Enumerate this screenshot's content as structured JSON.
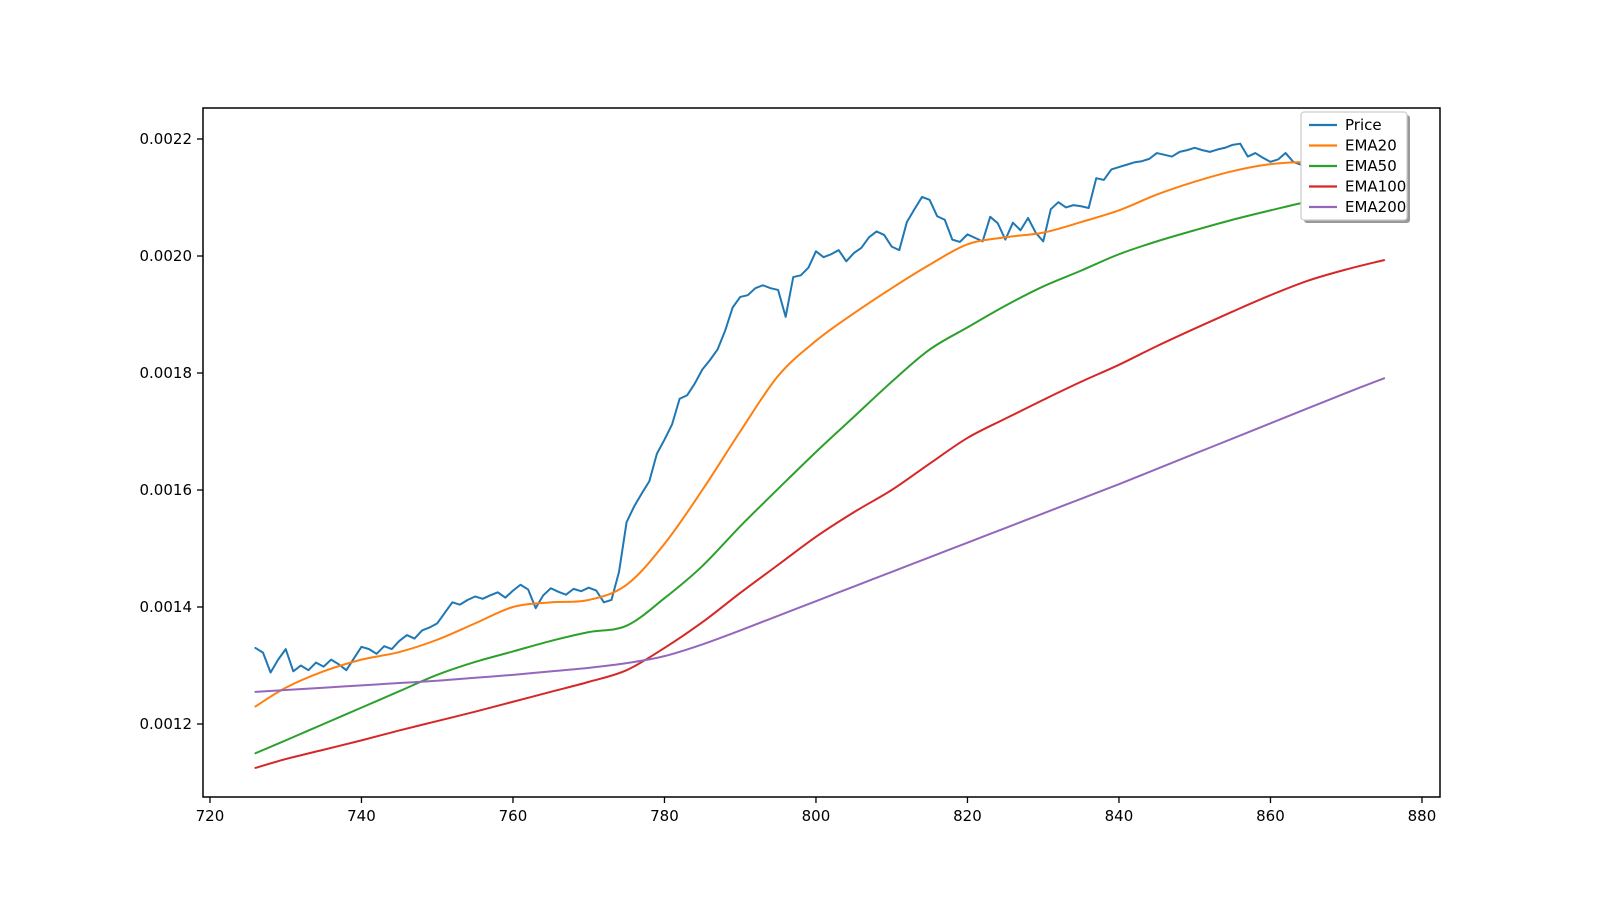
{
  "chart_data": {
    "type": "line",
    "title": "",
    "xlabel": "",
    "ylabel": "",
    "grid": false,
    "background_color": "#ffffff",
    "axes_edge_color": "#000000",
    "legend_position": "upper right",
    "xlim": [
      719.08,
      882.38
    ],
    "ylim": [
      0.0010752,
      0.002253
    ],
    "x_ticks": [
      720,
      740,
      760,
      780,
      800,
      820,
      840,
      860,
      880
    ],
    "x_tick_labels": [
      "720",
      "740",
      "760",
      "780",
      "800",
      "820",
      "840",
      "860",
      "880"
    ],
    "y_ticks": [
      0.0012,
      0.0014,
      0.0016,
      0.0018,
      0.002,
      0.0022
    ],
    "y_tick_labels": [
      "0.0012",
      "0.0014",
      "0.0016",
      "0.0018",
      "0.0020",
      "0.0022"
    ],
    "series": [
      {
        "name": "Price",
        "color": "#1f77b4",
        "smooth": false,
        "x_start": 726,
        "x_step": 1,
        "values": [
          0.00133,
          0.001322,
          0.001288,
          0.00131,
          0.001328,
          0.00129,
          0.0013,
          0.001292,
          0.001305,
          0.001298,
          0.00131,
          0.001302,
          0.001292,
          0.001312,
          0.001332,
          0.001328,
          0.00132,
          0.001333,
          0.001328,
          0.001342,
          0.001352,
          0.001346,
          0.00136,
          0.001365,
          0.001372,
          0.00139,
          0.001408,
          0.001404,
          0.001412,
          0.001418,
          0.001414,
          0.00142,
          0.001425,
          0.001416,
          0.001428,
          0.001438,
          0.00143,
          0.001398,
          0.00142,
          0.001432,
          0.001426,
          0.001421,
          0.001431,
          0.001427,
          0.001433,
          0.001428,
          0.001408,
          0.001412,
          0.00146,
          0.001545,
          0.001572,
          0.001594,
          0.001615,
          0.001662,
          0.001686,
          0.001712,
          0.001756,
          0.001762,
          0.001782,
          0.001806,
          0.001822,
          0.00184,
          0.001872,
          0.001912,
          0.00193,
          0.001933,
          0.001945,
          0.00195,
          0.001945,
          0.001942,
          0.001896,
          0.001964,
          0.001967,
          0.00198,
          0.002008,
          0.001998,
          0.002003,
          0.00201,
          0.001991,
          0.002005,
          0.002014,
          0.002032,
          0.002042,
          0.002036,
          0.002016,
          0.00201,
          0.002058,
          0.00208,
          0.002101,
          0.002096,
          0.002068,
          0.002062,
          0.002028,
          0.002024,
          0.002037,
          0.002031,
          0.002025,
          0.002067,
          0.002056,
          0.002028,
          0.002057,
          0.002044,
          0.002065,
          0.00204,
          0.002025,
          0.00208,
          0.002092,
          0.002083,
          0.002087,
          0.002085,
          0.002082,
          0.002133,
          0.00213,
          0.002148,
          0.002152,
          0.002156,
          0.00216,
          0.002162,
          0.002166,
          0.002176,
          0.002173,
          0.00217,
          0.002178,
          0.002181,
          0.002185,
          0.002181,
          0.002178,
          0.002182,
          0.002185,
          0.00219,
          0.002192,
          0.00217,
          0.002176,
          0.002168,
          0.002161,
          0.002165,
          0.002176,
          0.002161,
          0.002156,
          0.00215,
          0.002147,
          0.002158,
          0.002156,
          0.002157,
          0.002158,
          0.002159,
          0.00216,
          0.00216,
          0.002161,
          0.002161
        ]
      },
      {
        "name": "EMA20",
        "color": "#ff7f0e",
        "smooth": true,
        "x": [
          726,
          730,
          735,
          740,
          745,
          750,
          755,
          760,
          765,
          770,
          775,
          780,
          785,
          790,
          795,
          800,
          805,
          810,
          815,
          820,
          825,
          830,
          835,
          840,
          845,
          850,
          855,
          860,
          865,
          870,
          875
        ],
        "values": [
          0.00123,
          0.001262,
          0.00129,
          0.00131,
          0.001323,
          0.001344,
          0.001372,
          0.0014,
          0.001408,
          0.001412,
          0.001438,
          0.001508,
          0.0016,
          0.0017,
          0.001795,
          0.001855,
          0.001902,
          0.001945,
          0.001985,
          0.00202,
          0.002032,
          0.00204,
          0.002058,
          0.002078,
          0.002105,
          0.002127,
          0.002145,
          0.002157,
          0.002161,
          0.002162,
          0.002162
        ]
      },
      {
        "name": "EMA50",
        "color": "#2ca02c",
        "smooth": true,
        "x": [
          726,
          730,
          735,
          740,
          745,
          750,
          755,
          760,
          765,
          770,
          775,
          780,
          785,
          790,
          795,
          800,
          805,
          810,
          815,
          820,
          825,
          830,
          835,
          840,
          845,
          850,
          855,
          860,
          865,
          870,
          875
        ],
        "values": [
          0.00115,
          0.001172,
          0.0012,
          0.001228,
          0.001256,
          0.001284,
          0.001306,
          0.001324,
          0.001342,
          0.001357,
          0.001368,
          0.001415,
          0.00147,
          0.001538,
          0.001602,
          0.001665,
          0.001725,
          0.001785,
          0.00184,
          0.001878,
          0.001915,
          0.001948,
          0.001975,
          0.002003,
          0.002025,
          0.002044,
          0.002062,
          0.002078,
          0.002093,
          0.002104,
          0.002112
        ]
      },
      {
        "name": "EMA100",
        "color": "#d62728",
        "smooth": true,
        "x": [
          726,
          730,
          735,
          740,
          745,
          750,
          755,
          760,
          765,
          770,
          775,
          780,
          785,
          790,
          795,
          800,
          805,
          810,
          815,
          820,
          825,
          830,
          835,
          840,
          845,
          850,
          855,
          860,
          865,
          870,
          875
        ],
        "values": [
          0.001125,
          0.00114,
          0.001156,
          0.001172,
          0.001189,
          0.001205,
          0.001221,
          0.001238,
          0.001255,
          0.001272,
          0.001292,
          0.00133,
          0.001374,
          0.001424,
          0.001472,
          0.00152,
          0.001562,
          0.0016,
          0.001645,
          0.001689,
          0.001722,
          0.001754,
          0.001785,
          0.001814,
          0.001846,
          0.001876,
          0.001905,
          0.001933,
          0.001958,
          0.001977,
          0.001993
        ]
      },
      {
        "name": "EMA200",
        "color": "#9467bd",
        "smooth": true,
        "x": [
          726,
          730,
          735,
          740,
          745,
          750,
          755,
          760,
          765,
          770,
          775,
          780,
          785,
          790,
          795,
          800,
          805,
          810,
          815,
          820,
          825,
          830,
          835,
          840,
          845,
          850,
          855,
          860,
          865,
          870,
          875
        ],
        "values": [
          0.001255,
          0.001258,
          0.001262,
          0.001266,
          0.00127,
          0.001274,
          0.001279,
          0.001284,
          0.00129,
          0.001296,
          0.001304,
          0.001316,
          0.001336,
          0.00136,
          0.001385,
          0.00141,
          0.001435,
          0.00146,
          0.001485,
          0.00151,
          0.001535,
          0.00156,
          0.001585,
          0.00161,
          0.001636,
          0.001662,
          0.001688,
          0.001714,
          0.00174,
          0.001766,
          0.001791
        ]
      }
    ],
    "legend": {
      "entries": [
        "Price",
        "EMA20",
        "EMA50",
        "EMA100",
        "EMA200"
      ],
      "border_color": "#cccccc",
      "background_color": "#ffffff",
      "shadow_color": "#999999"
    }
  }
}
